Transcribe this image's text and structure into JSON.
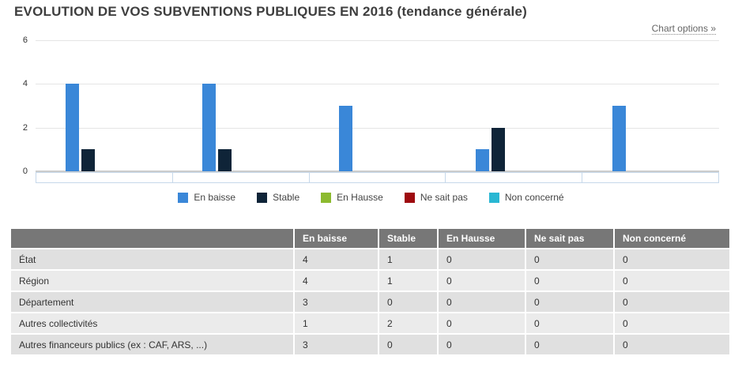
{
  "header": {
    "title": "EVOLUTION DE VOS SUBVENTIONS PUBLIQUES EN 2016 (tendance générale)",
    "chart_options_label": "Chart options »"
  },
  "chart_data": {
    "type": "bar",
    "title": "EVOLUTION DE VOS SUBVENTIONS PUBLIQUES EN 2016 (tendance générale)",
    "categories": [
      "État",
      "Région",
      "Département",
      "Autres collectivités",
      "Autres financeurs publics (ex : CAF, ARS, ...)"
    ],
    "series": [
      {
        "name": "En baisse",
        "color": "#3a87d8",
        "values": [
          4,
          4,
          3,
          1,
          3
        ]
      },
      {
        "name": "Stable",
        "color": "#0f2438",
        "values": [
          1,
          1,
          0,
          2,
          0
        ]
      },
      {
        "name": "En Hausse",
        "color": "#8cba2f",
        "values": [
          0,
          0,
          0,
          0,
          0
        ]
      },
      {
        "name": "Ne sait pas",
        "color": "#9e0b0f",
        "values": [
          0,
          0,
          0,
          0,
          0
        ]
      },
      {
        "name": "Non concerné",
        "color": "#29b7d3",
        "values": [
          0,
          0,
          0,
          0,
          0
        ]
      }
    ],
    "xlabel": "",
    "ylabel": "",
    "ylim": [
      0,
      6
    ],
    "yticks": [
      0,
      2,
      4,
      6
    ],
    "grid": true,
    "legend_position": "bottom",
    "x_tick_labels_visible": false
  },
  "table": {
    "columns": [
      "",
      "En baisse",
      "Stable",
      "En Hausse",
      "Ne sait pas",
      "Non concerné"
    ],
    "rows": [
      {
        "label": "État",
        "values": [
          4,
          1,
          0,
          0,
          0
        ]
      },
      {
        "label": "Région",
        "values": [
          4,
          1,
          0,
          0,
          0
        ]
      },
      {
        "label": "Département",
        "values": [
          3,
          0,
          0,
          0,
          0
        ]
      },
      {
        "label": "Autres collectivités",
        "values": [
          1,
          2,
          0,
          0,
          0
        ]
      },
      {
        "label": "Autres financeurs publics (ex : CAF, ARS, ...)",
        "values": [
          3,
          0,
          0,
          0,
          0
        ]
      }
    ]
  },
  "colors": {
    "title_text": "#3e3e3e",
    "table_header_bg": "#777777",
    "row_odd_bg": "#e0e0e0",
    "row_even_bg": "#ebebeb",
    "gridline": "#e5e5e5",
    "axis_band_border": "#c6d8ea"
  }
}
